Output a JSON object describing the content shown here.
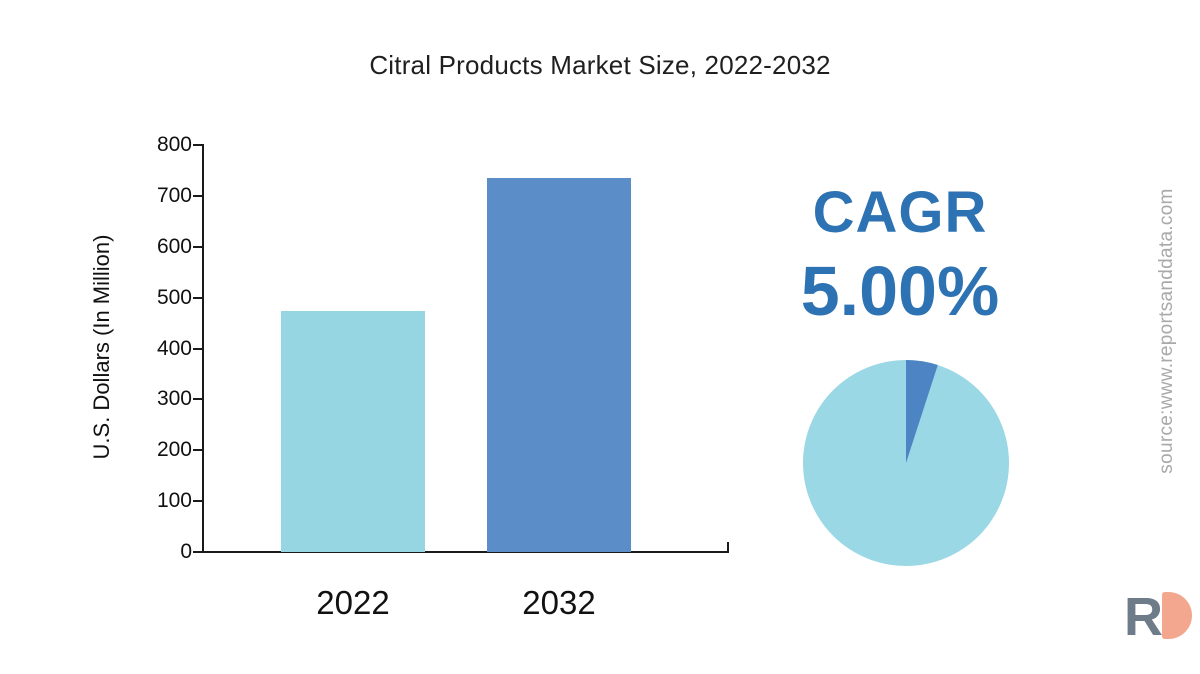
{
  "cagr": {
    "label": "CAGR",
    "value": "5.00%"
  },
  "source": "source:www.reportsanddata.com",
  "logo": {
    "letter": "R"
  },
  "colors": {
    "bar_2022": "#96d5e2",
    "bar_2032": "#5b8ec9",
    "pie_base": "#99d8e4",
    "pie_slice": "#4d84c4",
    "cagr_text": "#2d72b2",
    "axis": "#1a1a1a",
    "source_text": "#a7a9ab",
    "logo_gray": "#6e7b88",
    "logo_salmon": "#f3a78f"
  },
  "chart_data": [
    {
      "type": "bar",
      "title": "Citral Products Market Size, 2022-2032",
      "categories": [
        "2022",
        "2032"
      ],
      "values": [
        474,
        735
      ],
      "bar_colors": [
        "#96d5e2",
        "#5b8ec9"
      ],
      "xlabel": "",
      "ylabel": "U.S. Dollars (In Million)",
      "ylim": [
        0,
        800
      ],
      "yticks": [
        0,
        100,
        200,
        300,
        400,
        500,
        600,
        700,
        800
      ],
      "grid": false,
      "legend": "none"
    },
    {
      "type": "pie",
      "labels": [
        "growth-slice",
        "base"
      ],
      "values": [
        5,
        95
      ],
      "colors": [
        "#4d84c4",
        "#99d8e4"
      ],
      "start_angle_deg": -90,
      "direction": "clockwise",
      "legend": "none"
    }
  ]
}
